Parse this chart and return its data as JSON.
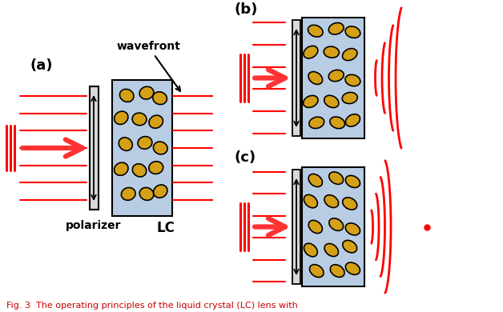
{
  "bg_color": "#ffffff",
  "lc_bg_color": "#b8cce4",
  "polarizer_color": "#d8d8d8",
  "ellipse_face": "#d4a017",
  "ellipse_edge": "#000000",
  "red_color": "#ff0000",
  "arrow_color": "#ff3333",
  "label_a": "(a)",
  "label_b": "(b)",
  "label_c": "(c)",
  "text_wavefront": "wavefront",
  "text_polarizer": "polarizer",
  "text_lc": "LC",
  "title_color": "#cc0000",
  "fig_width": 6.28,
  "fig_height": 3.9
}
